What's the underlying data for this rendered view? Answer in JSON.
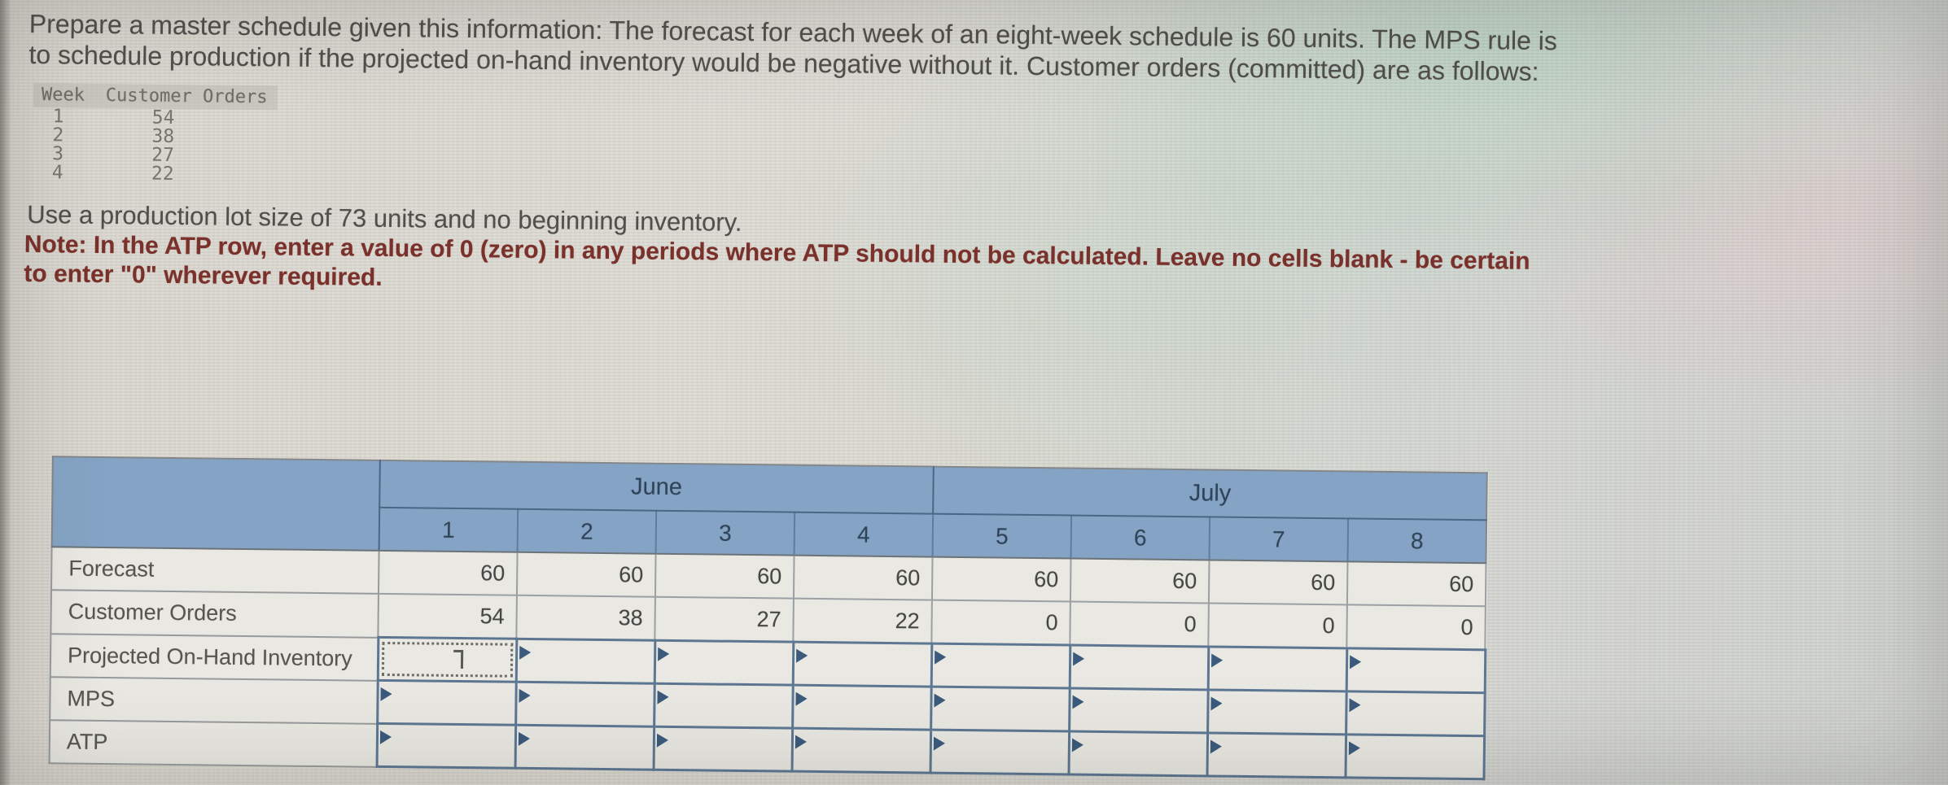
{
  "intro": {
    "line1": "Prepare a master schedule given this information: The forecast for each week of an eight-week schedule is 60 units. The MPS rule is",
    "line2": "to schedule production if the projected on-hand inventory would be negative without it. Customer orders (committed) are as follows:"
  },
  "orders_table": {
    "header_week": "Week",
    "header_orders": "Customer Orders",
    "rows": [
      {
        "week": "1",
        "orders": "54"
      },
      {
        "week": "2",
        "orders": "38"
      },
      {
        "week": "3",
        "orders": "27"
      },
      {
        "week": "4",
        "orders": "22"
      }
    ]
  },
  "body_text": {
    "lot_size": "Use a production lot size of 73 units and no beginning inventory."
  },
  "note": {
    "line1": "Note: In the ATP row, enter a value of 0 (zero) in any periods where ATP should not be calculated. Leave no cells blank - be certain",
    "line2": "to enter \"0\" wherever required."
  },
  "mps_table": {
    "month_groups": [
      {
        "label": "June",
        "colspan": 4
      },
      {
        "label": "July",
        "colspan": 4
      }
    ],
    "week_headers": [
      "1",
      "2",
      "3",
      "4",
      "5",
      "6",
      "7",
      "8"
    ],
    "rows": [
      {
        "label": "Forecast",
        "type": "values",
        "values": [
          "60",
          "60",
          "60",
          "60",
          "60",
          "60",
          "60",
          "60"
        ]
      },
      {
        "label": "Customer Orders",
        "type": "values",
        "values": [
          "54",
          "38",
          "27",
          "22",
          "0",
          "0",
          "0",
          "0"
        ]
      },
      {
        "label": "Projected On-Hand Inventory",
        "type": "inputs",
        "cells": [
          "selected",
          "marker",
          "marker",
          "marker",
          "marker",
          "marker",
          "marker",
          "marker"
        ]
      },
      {
        "label": "MPS",
        "type": "inputs",
        "cells": [
          "marker",
          "marker",
          "marker",
          "marker",
          "marker",
          "marker",
          "marker",
          "marker"
        ]
      },
      {
        "label": "ATP",
        "type": "inputs",
        "cells": [
          "marker",
          "marker",
          "marker",
          "marker",
          "marker",
          "marker",
          "marker",
          "marker"
        ]
      }
    ]
  },
  "colors": {
    "header_blue": "#85a4c5",
    "header_text": "#2f4459",
    "note_red": "#7b312b",
    "body_text_gray": "#514f4c",
    "input_marker_blue": "#3b5a7c",
    "table_background": "#e9e8e2"
  }
}
